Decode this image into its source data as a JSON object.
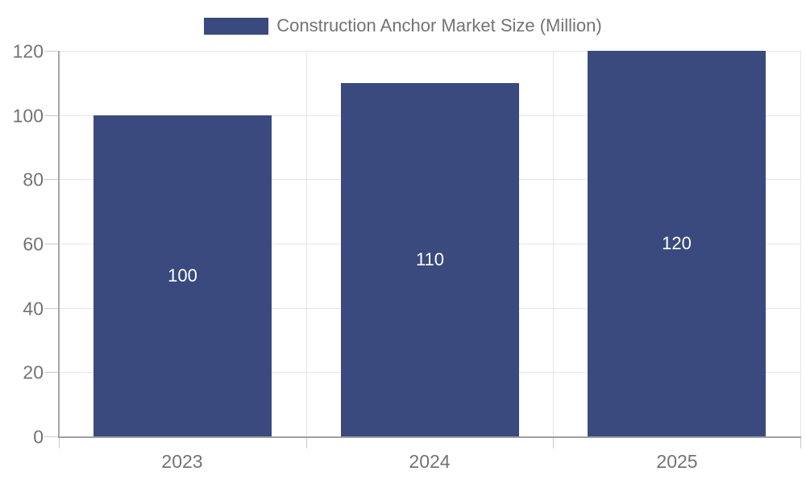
{
  "legend": {
    "series_label": "Construction Anchor Market Size (Million)"
  },
  "chart_data": {
    "type": "bar",
    "title": "Construction Anchor Market Size (Million)",
    "categories": [
      "2023",
      "2024",
      "2025"
    ],
    "values": [
      100,
      110,
      120
    ],
    "series": [
      {
        "name": "Construction Anchor Market Size (Million)",
        "values": [
          100,
          110,
          120
        ]
      }
    ],
    "xlabel": "",
    "ylabel": "",
    "ylim": [
      0,
      120
    ],
    "yticks": [
      0,
      20,
      40,
      60,
      80,
      100,
      120
    ],
    "grid": true,
    "legend_position": "top-center",
    "data_labels_inside_bars": true,
    "colors": {
      "bar": "#3A4A7E",
      "bar_label": "#FFFFFF",
      "axis_text": "#727375",
      "grid_line": "#E5E6E9",
      "x_axis_line": "#9EA0A4",
      "y_axis_line": "#A6A7AB",
      "tick": "#C9CBD1",
      "background": "#FFFFFF"
    }
  }
}
